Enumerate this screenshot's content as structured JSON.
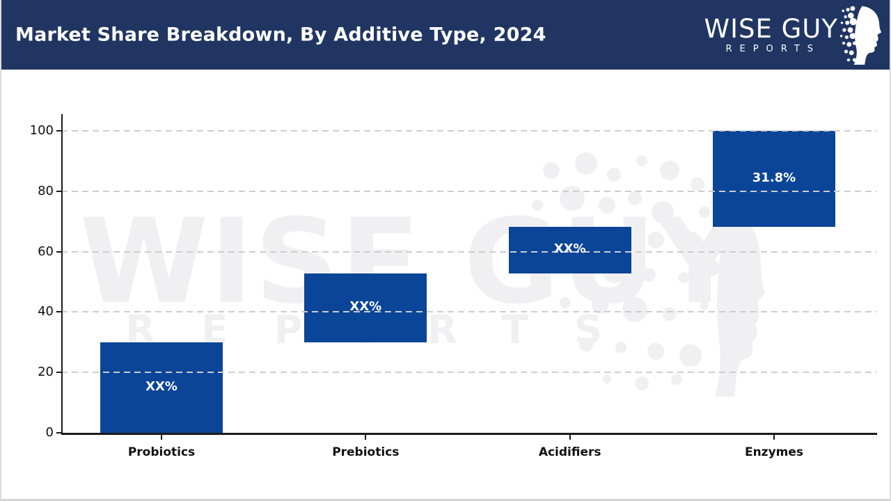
{
  "header": {
    "title": "Market Share Breakdown, By Additive Type, 2024",
    "logo": {
      "line1": "WISE GUY",
      "line2": "REPORTS"
    }
  },
  "watermark": {
    "line1": "WISE GUY",
    "line2": "REPORTS"
  },
  "chart_data": {
    "type": "bar",
    "variant": "waterfall",
    "title": "Market Share Breakdown, By Additive Type, 2024",
    "categories": [
      "Probiotics",
      "Prebiotics",
      "Acidifiers",
      "Enzymes"
    ],
    "values": [
      30,
      22.8,
      15.4,
      31.8
    ],
    "cumulative_ranges": [
      [
        0,
        30
      ],
      [
        30,
        52.8
      ],
      [
        52.8,
        68.2
      ],
      [
        68.2,
        100
      ]
    ],
    "bar_labels": [
      "XX%",
      "XX%",
      "XX%",
      "31.8%"
    ],
    "xlabel": "",
    "ylabel": "",
    "ylim": [
      0,
      100
    ],
    "yticks": [
      0,
      20,
      40,
      60,
      80,
      100
    ],
    "grid": "horizontal-dashed",
    "legend": "none"
  },
  "colors": {
    "header_bg": "#213563",
    "bar": "#0b4598",
    "grid": "#cdcdcd",
    "axis": "#1a1a1a",
    "watermark": "#f0f0f2",
    "label_on_bar": "#ffffff"
  }
}
